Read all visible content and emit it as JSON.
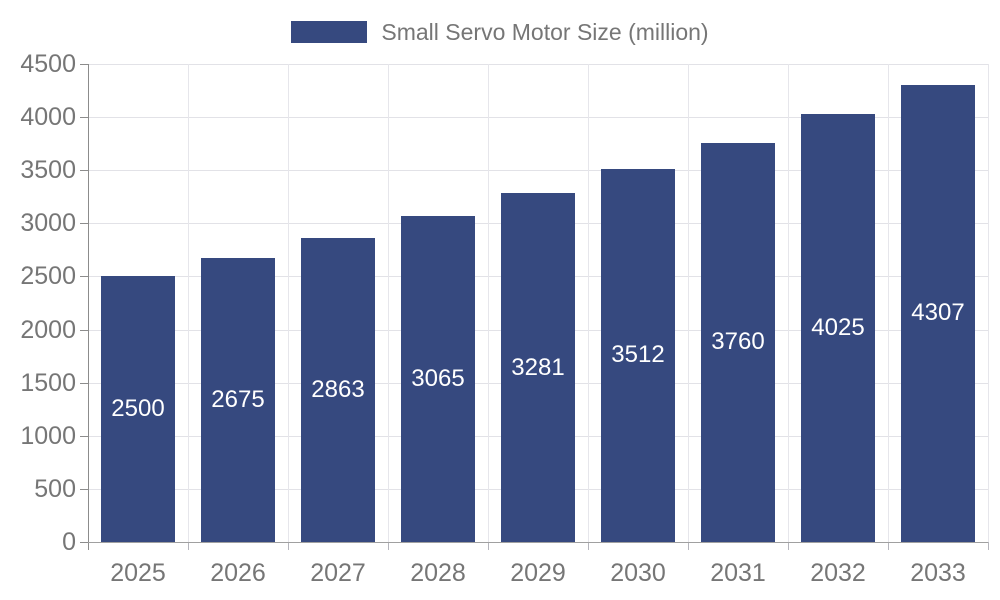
{
  "legend": {
    "label": "Small Servo Motor Size (million)"
  },
  "colors": {
    "bar": "#36497f",
    "axis_text": "#767676",
    "value_label": "#ffffff",
    "grid": "#e2e2e7",
    "axis_line": "#8c8c8c",
    "background": "#ffffff"
  },
  "chart_data": {
    "type": "bar",
    "title": "",
    "xlabel": "",
    "ylabel": "",
    "categories": [
      "2025",
      "2026",
      "2027",
      "2028",
      "2029",
      "2030",
      "2031",
      "2032",
      "2033"
    ],
    "series": [
      {
        "name": "Small Servo Motor Size (million)",
        "values": [
          2500,
          2675,
          2863,
          3065,
          3281,
          3512,
          3760,
          4025,
          4307
        ]
      }
    ],
    "ylim": [
      0,
      4500
    ],
    "ytick_step": 500,
    "yticks": [
      0,
      500,
      1000,
      1500,
      2000,
      2500,
      3000,
      3500,
      4000,
      4500
    ],
    "grid": true,
    "legend_position": "top-center",
    "value_labels": "inside-center-white"
  }
}
